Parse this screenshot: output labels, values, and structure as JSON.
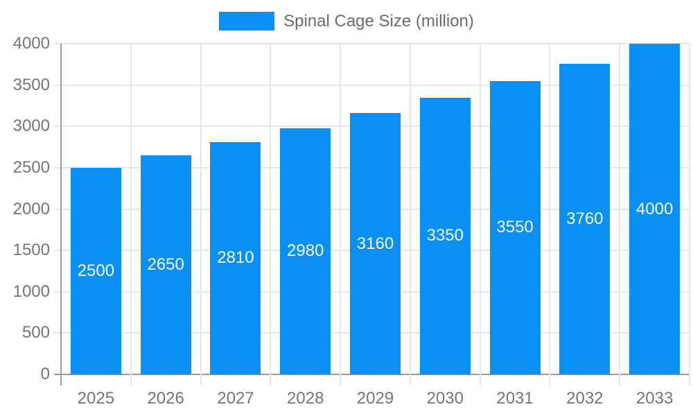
{
  "chart_data": {
    "type": "bar",
    "title": "Spinal Cage Size (million)",
    "categories": [
      "2025",
      "2026",
      "2027",
      "2028",
      "2029",
      "2030",
      "2031",
      "2032",
      "2033"
    ],
    "series": [
      {
        "name": "Spinal Cage Size (million)",
        "values": [
          2500,
          2650,
          2810,
          2980,
          3160,
          3350,
          3550,
          3760,
          4000
        ]
      }
    ],
    "xlabel": "",
    "ylabel": "",
    "ylim": [
      0,
      4000
    ],
    "ytick_step": 500,
    "grid": true,
    "legend_position": "top",
    "bar_value_labels_visible": true
  },
  "colors": {
    "bar": "#0a90f5",
    "bar_label": "#ffffff",
    "grid": "#e6e6e6",
    "axis_line": "#999999",
    "axis_text": "#757575",
    "legend_text": "#6b6b6b",
    "background": "#ffffff"
  }
}
